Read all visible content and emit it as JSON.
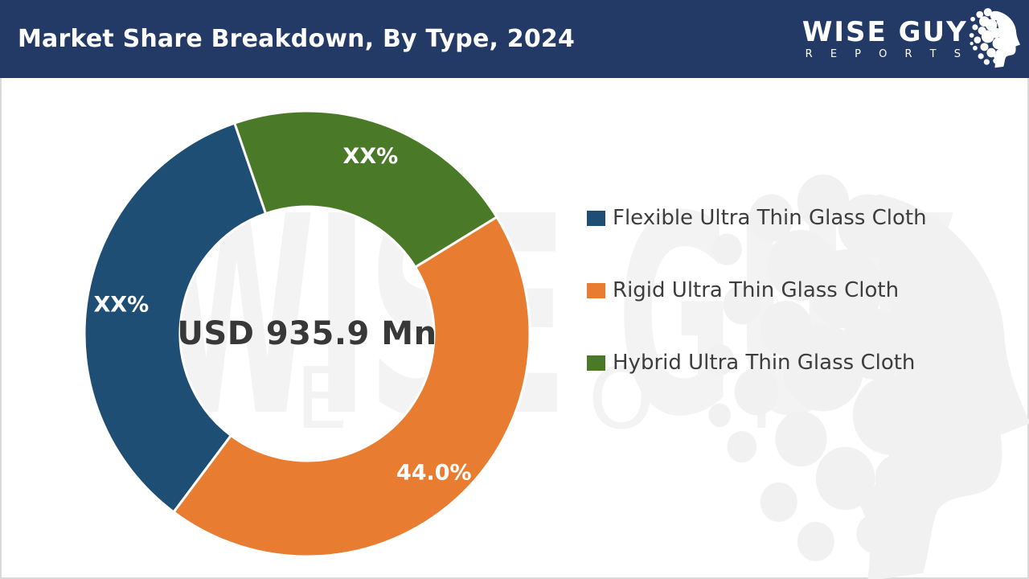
{
  "header": {
    "title": "Market Share Breakdown, By Type, 2024",
    "logo": {
      "line1": "WISE GUY",
      "line2": "R E P O R T S"
    }
  },
  "watermark": {
    "line1": "WISE GUY",
    "line2": "R E P O R T S"
  },
  "chart_data": {
    "type": "pie",
    "subtype": "donut",
    "title": "Market Share Breakdown, By Type, 2024",
    "center_label": "USD 935.9 Mn",
    "start_angle_deg": 109,
    "direction": "counterclockwise",
    "legend_position": "right",
    "slices": [
      {
        "name": "Flexible Ultra Thin Glass Cloth",
        "value_pct": 34.5,
        "label": "XX%",
        "color": "#1f4e74"
      },
      {
        "name": "Rigid Ultra Thin Glass Cloth",
        "value_pct": 44.0,
        "label": "44.0%",
        "color": "#e87d31"
      },
      {
        "name": "Hybrid Ultra Thin Glass Cloth",
        "value_pct": 21.5,
        "label": "XX%",
        "color": "#4a7a28"
      }
    ]
  },
  "colors": {
    "header_bg": "#233a66",
    "border": "#d9d9d9",
    "center_text": "#383838",
    "legend_text": "#3d3d3d",
    "slice_label_text": "#ffffff",
    "watermark": "#f3f3f3"
  }
}
